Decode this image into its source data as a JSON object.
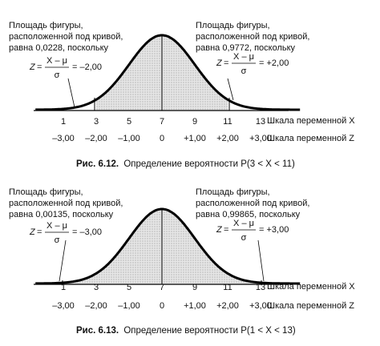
{
  "figures": [
    {
      "id": "fig612",
      "left_note": [
        "Площадь фигуры,",
        "расположенной под кривой,",
        "равна 0,0228, поскольку"
      ],
      "right_note": [
        "Площадь фигуры,",
        "расположенной под кривой,",
        "равна 0,9772, поскольку"
      ],
      "left_formula": {
        "lhs": "Z",
        "num": "X – μ",
        "den": "σ",
        "result": "= –2,00"
      },
      "right_formula": {
        "lhs": "Z",
        "num": "X – μ",
        "den": "σ",
        "result": "= +2,00"
      },
      "x_ticks": [
        "1",
        "3",
        "5",
        "7",
        "9",
        "11",
        "13"
      ],
      "z_ticks": [
        "–3,00",
        "–2,00",
        "–1,00",
        "0",
        "+1,00",
        "+2,00",
        "+3,00"
      ],
      "x_axis_label": "Шкала переменной X",
      "z_axis_label": "Шкала переменной Z",
      "caption_bold": "Рис. 6.12.",
      "caption_text": "Определение вероятности P(3 < X < 11)",
      "shade_from": 3,
      "shade_to": 11
    },
    {
      "id": "fig613",
      "left_note": [
        "Площадь фигуры,",
        "расположенной под кривой,",
        "равна 0,00135, поскольку"
      ],
      "right_note": [
        "Площадь фигуры,",
        "расположенной под кривой,",
        "равна 0,99865, поскольку"
      ],
      "left_formula": {
        "lhs": "Z",
        "num": "X – μ",
        "den": "σ",
        "result": "= –3,00"
      },
      "right_formula": {
        "lhs": "Z",
        "num": "X – μ",
        "den": "σ",
        "result": "= +3,00"
      },
      "x_ticks": [
        "1",
        "3",
        "5",
        "7",
        "9",
        "11",
        "13"
      ],
      "z_ticks": [
        "–3,00",
        "–2,00",
        "–1,00",
        "0",
        "+1,00",
        "+2,00",
        "+3,00"
      ],
      "x_axis_label": "Шкала переменной X",
      "z_axis_label": "Шкала переменной Z",
      "caption_bold": "Рис. 6.13.",
      "caption_text": "Определение вероятности P(1 < X < 13)",
      "shade_from": 1,
      "shade_to": 13
    }
  ],
  "distribution": {
    "mean": 7,
    "sd": 2
  }
}
